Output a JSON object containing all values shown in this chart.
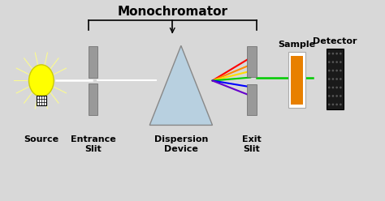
{
  "bg_color": "#d8d8d8",
  "title": "Monochromator",
  "title_fontsize": 11,
  "title_fontweight": "bold",
  "label_fontsize": 8,
  "components": {
    "source_label": "Source",
    "entrance_slit_label": "Entrance\nSlit",
    "dispersion_label": "Dispersion\nDevice",
    "exit_slit_label": "Exit\nSlit",
    "sample_label": "Sample",
    "detector_label": "Detector"
  },
  "colors": {
    "slit_gray": "#999999",
    "triangle_fill": "#b8d0e0",
    "triangle_edge": "#aaaaaa",
    "bulb_yellow": "#ffff00",
    "light_rays": "#ffff88",
    "sample_orange": "#e88000",
    "green_beam": "#00cc00",
    "bracket_color": "#000000"
  }
}
